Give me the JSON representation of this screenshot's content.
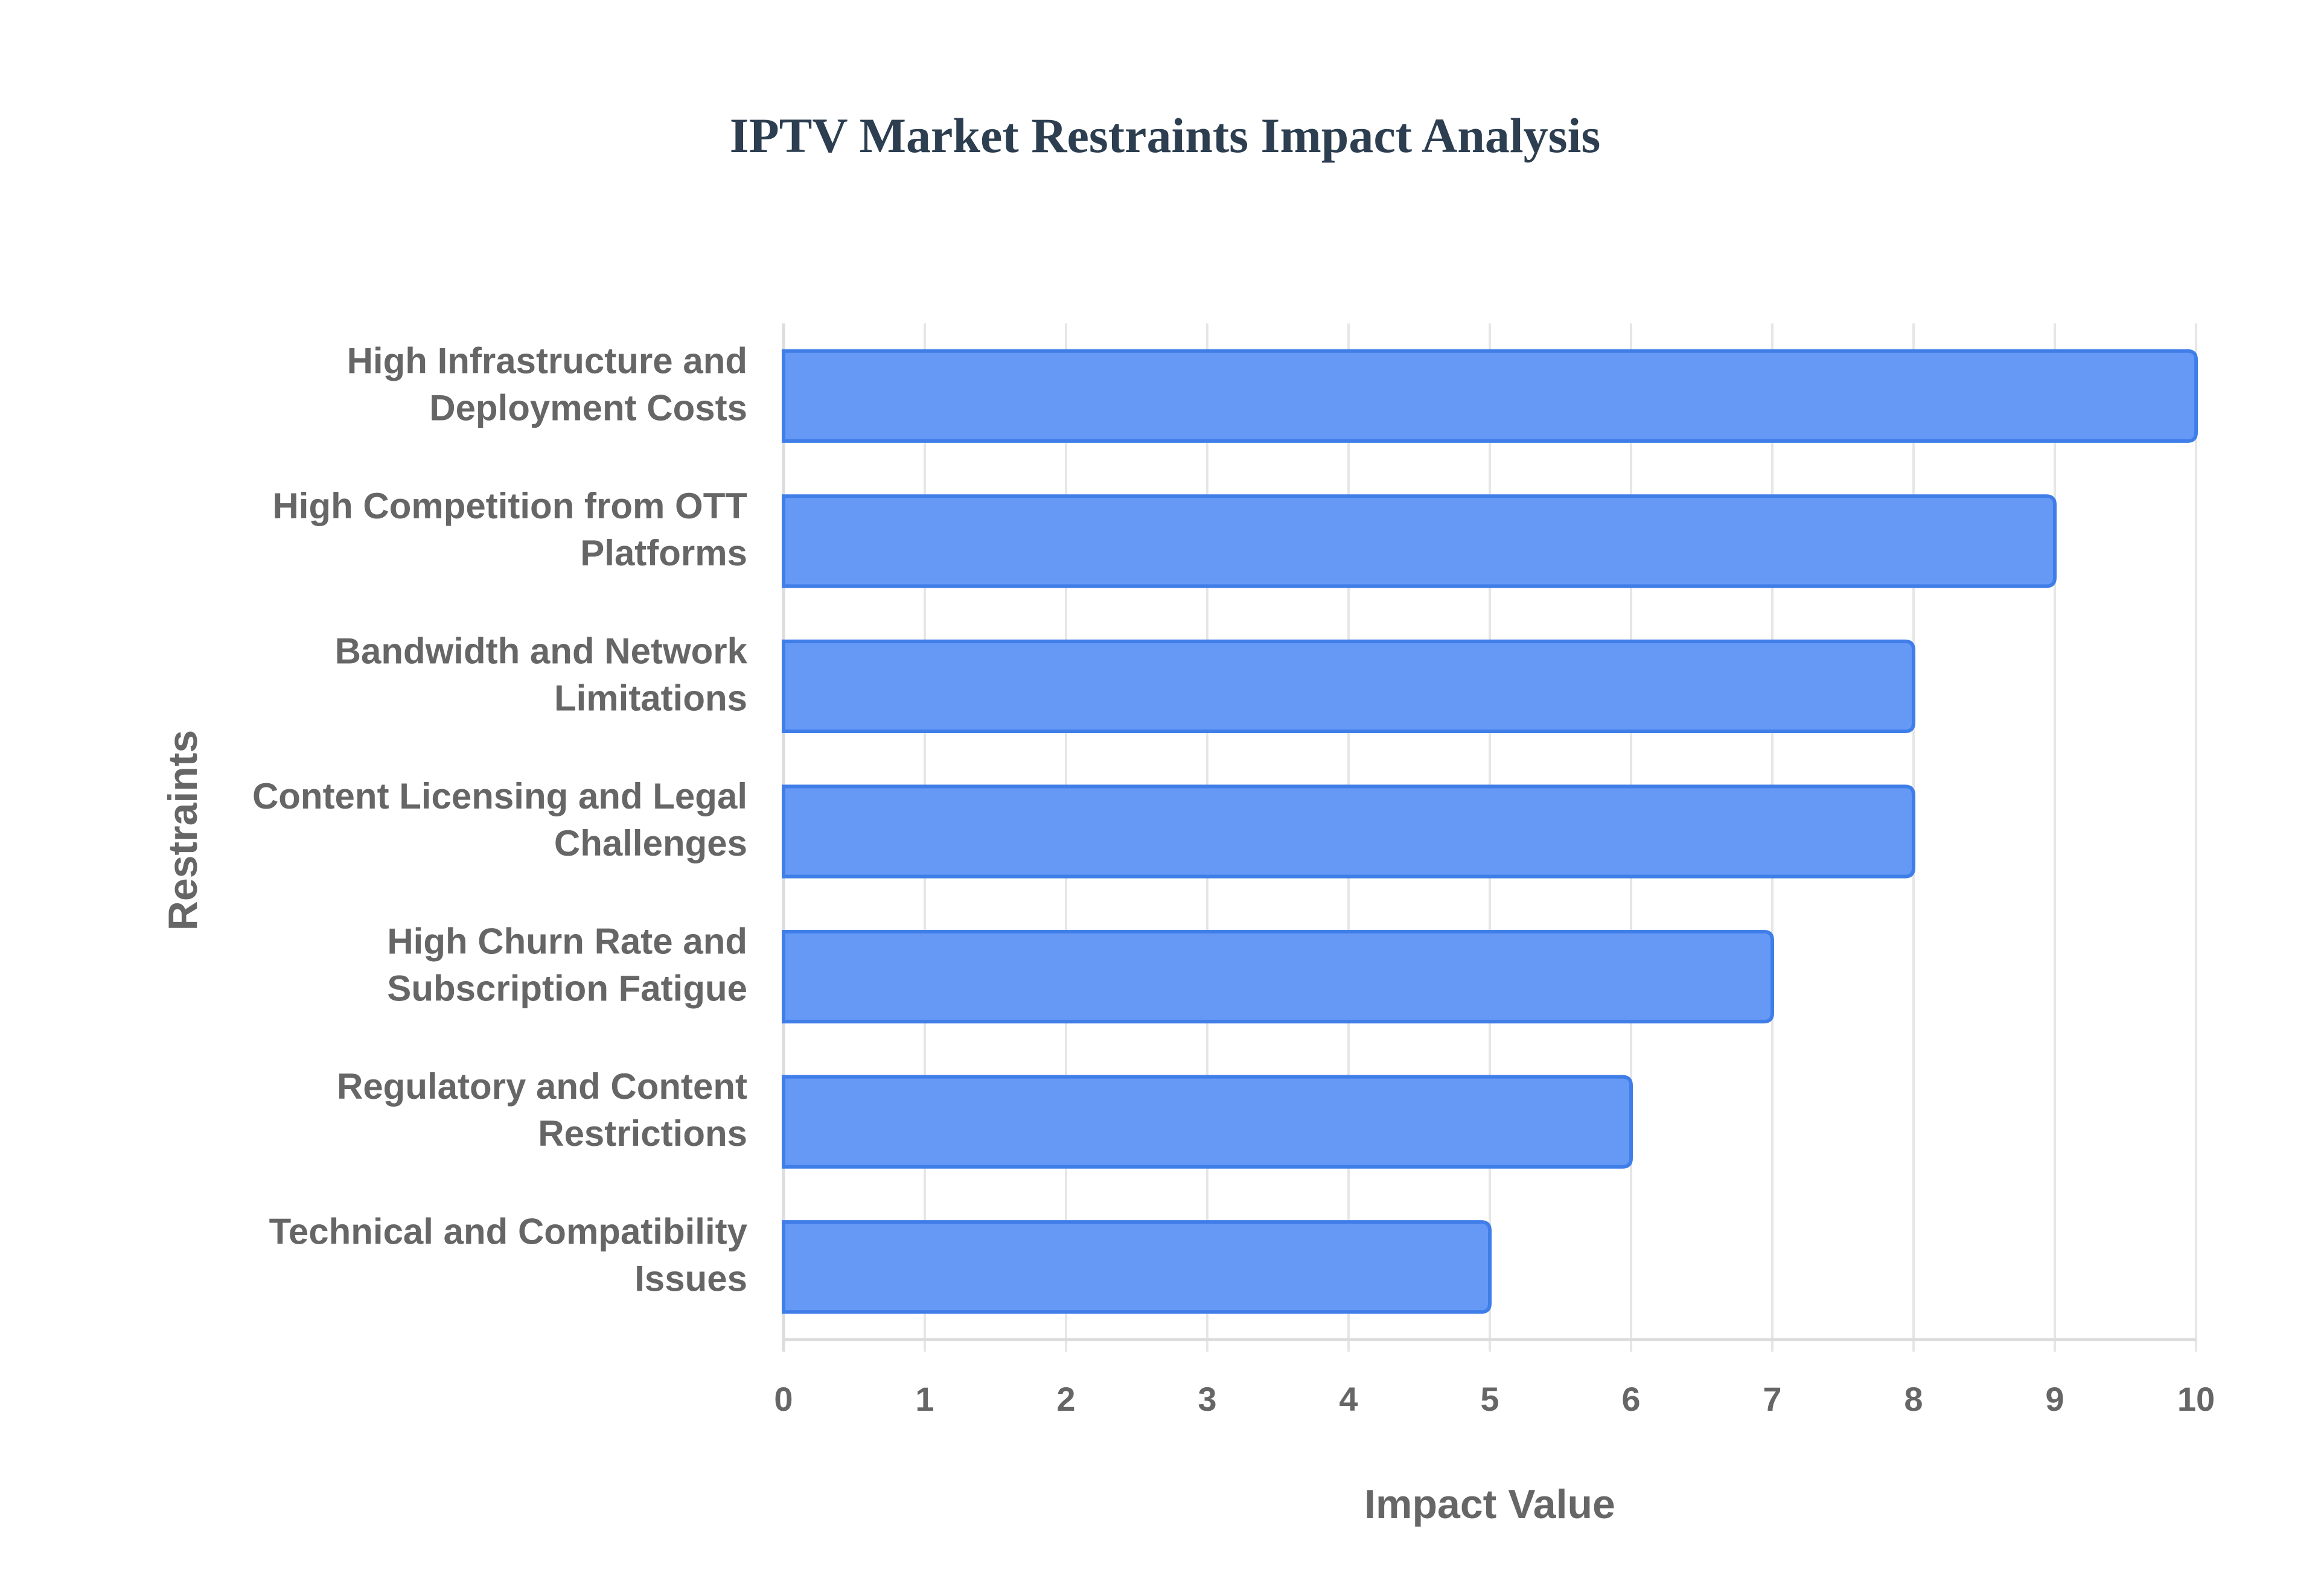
{
  "chart_data": {
    "type": "bar",
    "orientation": "horizontal",
    "title": "IPTV Market Restraints Impact Analysis",
    "xlabel": "Impact Value",
    "ylabel": "Restraints",
    "xlim": [
      0,
      10
    ],
    "x_ticks": [
      "0",
      "1",
      "2",
      "3",
      "4",
      "5",
      "6",
      "7",
      "8",
      "9",
      "10"
    ],
    "grid": true,
    "legend": "none",
    "bar_color": "#6699f5",
    "bar_border_color": "#3f7ee8",
    "categories": [
      [
        "High Infrastructure and",
        "Deployment Costs"
      ],
      [
        "High Competition from OTT",
        "Platforms"
      ],
      [
        "Bandwidth and Network",
        "Limitations"
      ],
      [
        "Content Licensing and Legal",
        "Challenges"
      ],
      [
        "High Churn Rate and",
        "Subscription Fatigue"
      ],
      [
        "Regulatory and Content",
        "Restrictions"
      ],
      [
        "Technical and Compatibility",
        "Issues"
      ]
    ],
    "values": [
      10,
      9,
      8,
      8,
      7,
      6,
      5
    ]
  }
}
